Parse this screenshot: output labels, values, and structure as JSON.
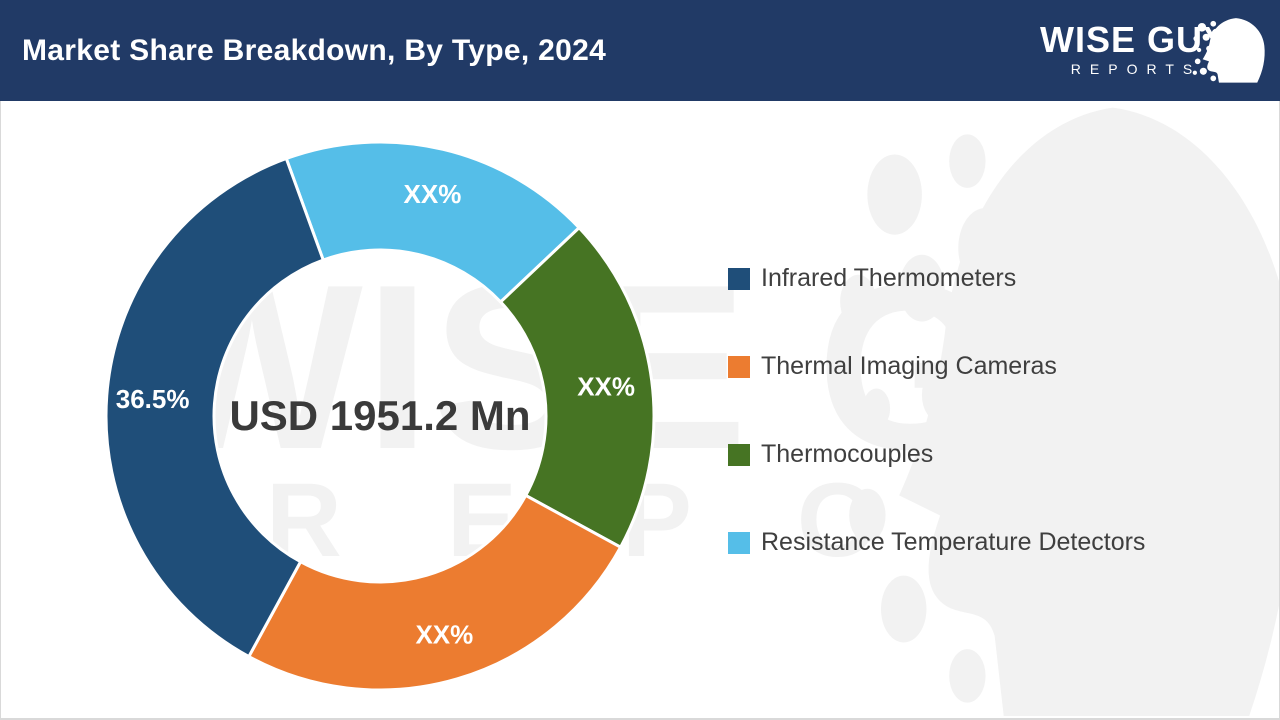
{
  "header": {
    "title": "Market Share Breakdown, By Type, 2024",
    "bg_color": "#213A66",
    "logo": {
      "line1": "WISE GUY",
      "line2": "REPORTS"
    }
  },
  "watermark": {
    "line1": "WISE GUY",
    "line2": "REPORTS"
  },
  "chart_data": {
    "type": "pie",
    "variant": "donut",
    "title": "Market Share Breakdown, By Type, 2024",
    "center_label": "USD 1951.2 Mn",
    "start_angle_deg": -20,
    "legend_position": "right",
    "segments": [
      {
        "name": "Resistance Temperature Detectors",
        "value": 18.5,
        "label": "XX%",
        "color": "#55BEE8"
      },
      {
        "name": "Thermocouples",
        "value": 20.0,
        "label": "XX%",
        "color": "#467423"
      },
      {
        "name": "Thermal Imaging Cameras",
        "value": 25.0,
        "label": "XX%",
        "color": "#EC7C30"
      },
      {
        "name": "Infrared Thermometers",
        "value": 36.5,
        "label": "36.5%",
        "color": "#1F4E79"
      }
    ],
    "legend": [
      {
        "label": "Infrared Thermometers",
        "color": "#1F4E79"
      },
      {
        "label": "Thermal Imaging Cameras",
        "color": "#EC7C30"
      },
      {
        "label": "Thermocouples",
        "color": "#467423"
      },
      {
        "label": "Resistance Temperature Detectors",
        "color": "#55BEE8"
      }
    ]
  }
}
